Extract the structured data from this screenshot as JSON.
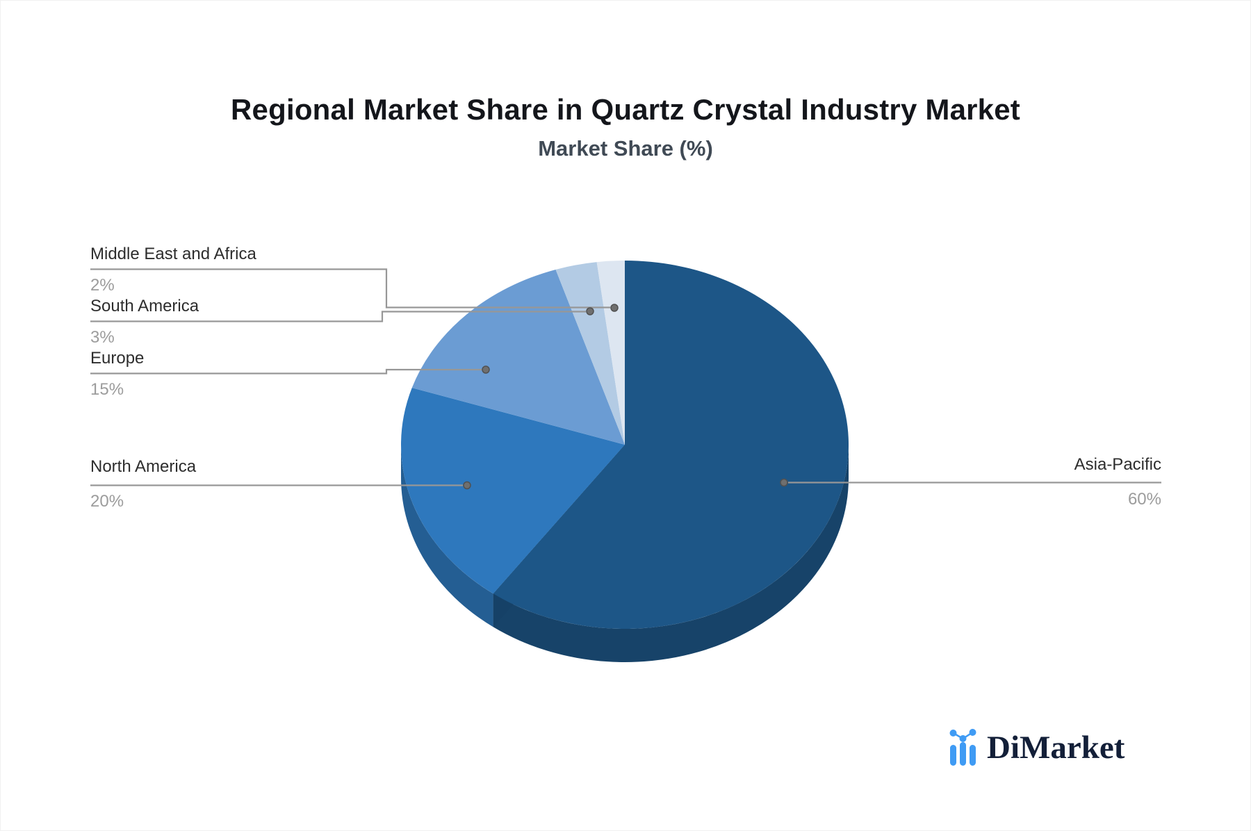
{
  "header": {
    "title": "Regional Market Share in Quartz Crystal Industry Market",
    "subtitle": "Market Share (%)"
  },
  "chart_data": {
    "type": "pie",
    "style": "3d",
    "title": "Regional Market Share in Quartz Crystal Industry Market",
    "subtitle": "Market Share (%)",
    "unit": "%",
    "start_angle_deg": 0,
    "direction": "clockwise",
    "legend_position": "callout-labels",
    "slices": [
      {
        "label": "Asia-Pacific",
        "value": 60,
        "display": "60%",
        "color": "#1d5687"
      },
      {
        "label": "North America",
        "value": 20,
        "display": "20%",
        "color": "#2e78bd"
      },
      {
        "label": "Europe",
        "value": 15,
        "display": "15%",
        "color": "#6b9cd3"
      },
      {
        "label": "South America",
        "value": 3,
        "display": "3%",
        "color": "#b3cbe4"
      },
      {
        "label": "Middle East and Africa",
        "value": 2,
        "display": "2%",
        "color": "#dde6f1"
      }
    ],
    "callout_line_color": "#979797",
    "callout_dot_color": "#6f6f6f",
    "label_color": "#2d2d2d",
    "value_color": "#9c9c9c"
  },
  "logo": {
    "text": "DiMarket",
    "icon": "bar-line-chart-icon",
    "accent_color": "#3f9bf4",
    "text_color": "#131f38"
  }
}
